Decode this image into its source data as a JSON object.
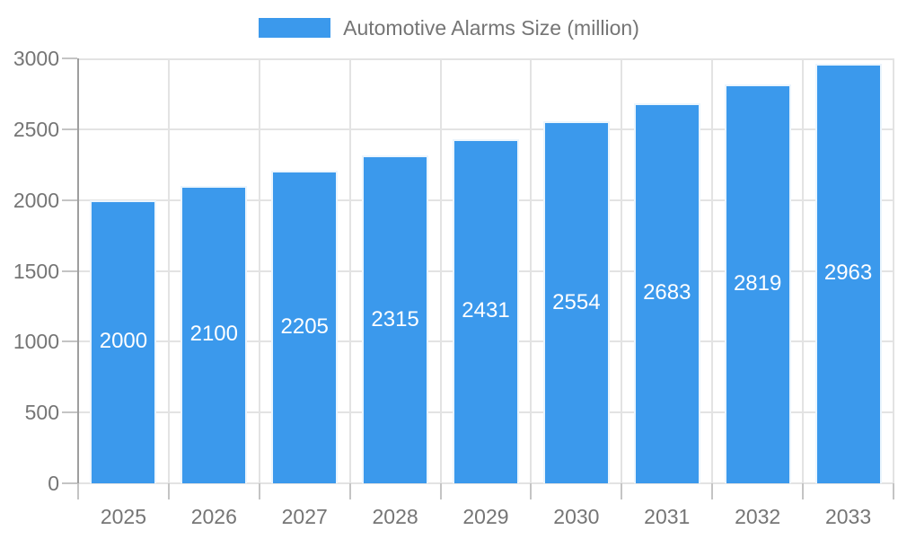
{
  "chart_data": {
    "type": "bar",
    "title": "",
    "legend_label": "Automotive Alarms Size (million)",
    "legend_position": "top",
    "categories": [
      "2025",
      "2026",
      "2027",
      "2028",
      "2029",
      "2030",
      "2031",
      "2032",
      "2033"
    ],
    "series": [
      {
        "name": "Automotive Alarms Size (million)",
        "values": [
          2000,
          2100,
          2205,
          2315,
          2431,
          2554,
          2683,
          2819,
          2963
        ]
      }
    ],
    "value_labels": [
      "2000",
      "2100",
      "2205",
      "2315",
      "2431",
      "2554",
      "2683",
      "2819",
      "2963"
    ],
    "xlabel": "",
    "ylabel": "",
    "ylim": [
      0,
      3000
    ],
    "y_ticks": [
      0,
      500,
      1000,
      1500,
      2000,
      2500,
      3000
    ],
    "grid": "both",
    "value_label_position": "inside-center"
  },
  "colors": {
    "bar": "#3b99ec",
    "background": "#ffffff",
    "gridline": "#e3e3e3",
    "axis_line": "#9e9e9e",
    "tick": "#c4c4c4",
    "axis_text": "#757575",
    "legend_text": "#757575",
    "value_text": "#ffffff"
  }
}
